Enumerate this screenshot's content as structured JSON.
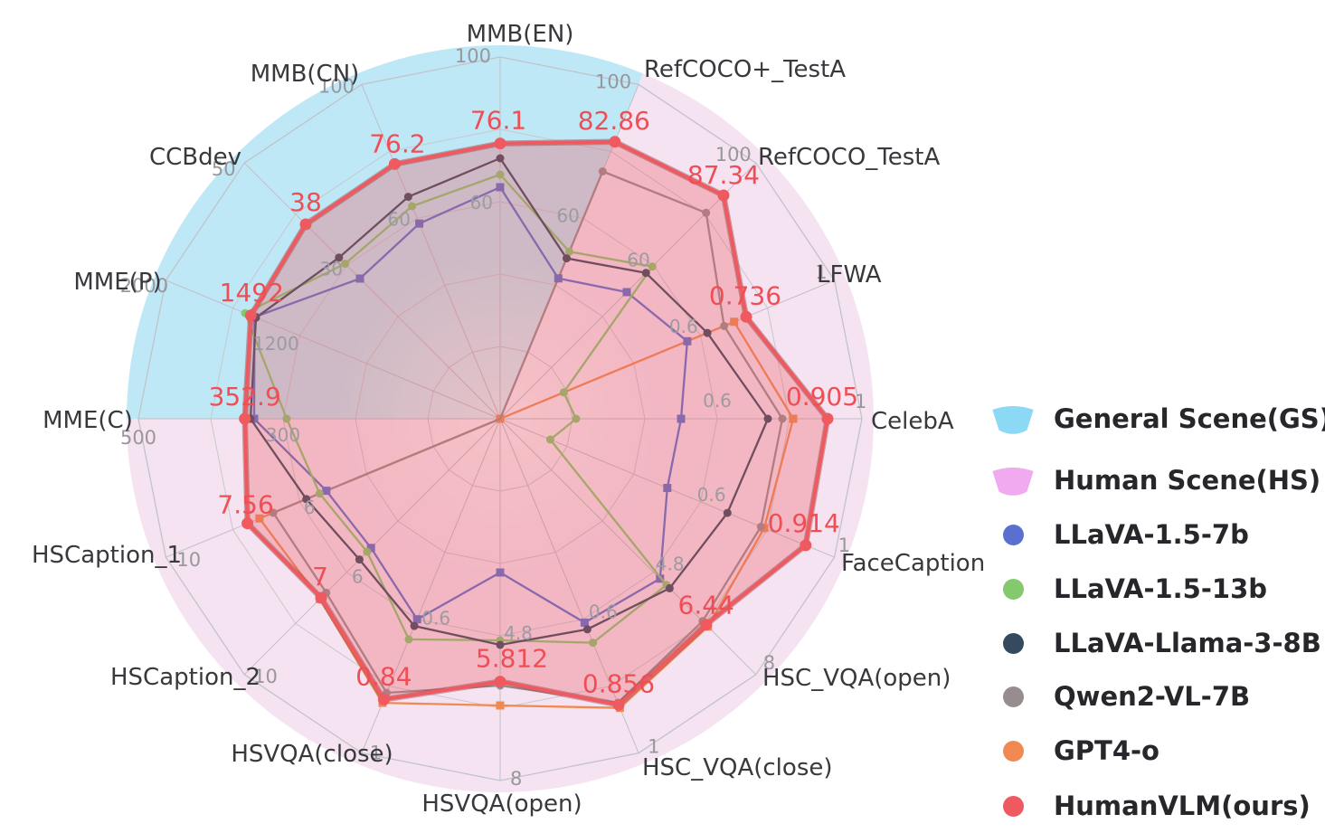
{
  "chart_data": {
    "type": "radar",
    "title": "",
    "axes_order": "clockwise from top",
    "axes": [
      {
        "label": "MMB(EN)",
        "max": 100,
        "outer_tick": "100",
        "inner_tick": "60",
        "humanvlm_value_label": "76.1"
      },
      {
        "label": "RefCOCO+_TestA",
        "max": 100,
        "outer_tick": "100",
        "inner_tick": "60",
        "humanvlm_value_label": "82.86"
      },
      {
        "label": "RefCOCO_TestA",
        "max": 100,
        "outer_tick": "100",
        "inner_tick": "60",
        "humanvlm_value_label": "87.34"
      },
      {
        "label": "LFWA",
        "max": 1,
        "outer_tick": "1",
        "inner_tick": "0.6",
        "humanvlm_value_label": "0.736"
      },
      {
        "label": "CelebA",
        "max": 1,
        "outer_tick": "1",
        "inner_tick": "0.6",
        "humanvlm_value_label": "0.905"
      },
      {
        "label": "FaceCaption",
        "max": 1,
        "outer_tick": "1",
        "inner_tick": "0.6",
        "humanvlm_value_label": "0.914"
      },
      {
        "label": "HSC_VQA(open)",
        "max": 8,
        "outer_tick": "8",
        "inner_tick": "4.8",
        "humanvlm_value_label": "6.44"
      },
      {
        "label": "HSC_VQA(close)",
        "max": 1,
        "outer_tick": "1",
        "inner_tick": "0.6",
        "humanvlm_value_label": "0.856"
      },
      {
        "label": "HSVQA(open)",
        "max": 8,
        "outer_tick": "8",
        "inner_tick": "4.8",
        "humanvlm_value_label": "5.812"
      },
      {
        "label": "HSVQA(close)",
        "max": 1,
        "outer_tick": "1",
        "inner_tick": "0.6",
        "humanvlm_value_label": "0.84"
      },
      {
        "label": "HSCaption_2",
        "max": 10,
        "outer_tick": "10",
        "inner_tick": "6",
        "humanvlm_value_label": "7"
      },
      {
        "label": "HSCaption_1",
        "max": 10,
        "outer_tick": "10",
        "inner_tick": "6",
        "humanvlm_value_label": "7.56"
      },
      {
        "label": "MME(C)",
        "max": 500,
        "outer_tick": "500",
        "inner_tick": "300",
        "humanvlm_value_label": "352.9"
      },
      {
        "label": "MME(P)",
        "max": 2000,
        "outer_tick": "2000",
        "inner_tick": "1200",
        "humanvlm_value_label": "1492"
      },
      {
        "label": "CCBdev",
        "max": 50,
        "outer_tick": "50",
        "inner_tick": "30",
        "humanvlm_value_label": "38"
      },
      {
        "label": "MMB(CN)",
        "max": 100,
        "outer_tick": "100",
        "inner_tick": "60",
        "humanvlm_value_label": "76.2"
      }
    ],
    "series": [
      {
        "name": "LLaVA-1.5-7b",
        "color": "#5a70d0",
        "marker": "square",
        "values": [
          64,
          42,
          49.5,
          0.56,
          0.5,
          0.5,
          5.0,
          0.61,
          3.4,
          0.6,
          5.05,
          5.2,
          340,
          1470,
          27.4,
          58.4
        ]
      },
      {
        "name": "LLaVA-1.5-13b",
        "color": "#85c96f",
        "marker": "circle",
        "values": [
          67.5,
          50,
          59.5,
          0.19,
          0.21,
          0.15,
          5.2,
          0.67,
          4.9,
          0.66,
          5.2,
          5.4,
          295,
          1526,
          30.3,
          63.6
        ]
      },
      {
        "name": "LLaVA-Llama-3-8B",
        "color": "#35495f",
        "marker": "circle",
        "values": [
          72,
          48,
          57,
          0.62,
          0.74,
          0.68,
          5.3,
          0.63,
          5.0,
          0.62,
          5.5,
          5.8,
          345,
          1461,
          31.5,
          66.4
        ]
      },
      {
        "name": "Qwen2-VL-7B",
        "color": "#978d8f",
        "marker": "circle",
        "values": [
          0,
          74,
          80.5,
          0.67,
          0.78,
          0.78,
          6.33,
          0.85,
          5.9,
          0.82,
          6.8,
          6.79,
          0,
          0,
          0,
          0
        ]
      },
      {
        "name": "GPT4-o",
        "color": "#f08a52",
        "marker": "square",
        "values": [
          0,
          0,
          0,
          0.7,
          0.81,
          0.79,
          6.5,
          0.865,
          6.34,
          0.85,
          7.05,
          7.2,
          0,
          0,
          0,
          0
        ]
      },
      {
        "name": "HumanVLM(ours)",
        "color": "#ee5a5f",
        "marker": "circle",
        "fill": "rgba(237,90,95,0.32)",
        "values": [
          76.1,
          82.86,
          87.34,
          0.736,
          0.905,
          0.914,
          6.44,
          0.856,
          5.812,
          0.84,
          7,
          7.56,
          352.9,
          1492,
          38,
          76.2
        ]
      }
    ],
    "bands": {
      "gs": {
        "label": "General Scene(GS)",
        "chart_color": "#bfe8f6",
        "legend_color": "#8bd9f4",
        "covers_axes": [
          "MMB(EN)",
          "MMB(CN)",
          "CCBdev",
          "MME(P)",
          "MME(C)"
        ]
      },
      "hs": {
        "label": "Human Scene(HS)",
        "chart_color": "#f5e3f2",
        "legend_color": "#f1a9ef",
        "covers_axes": [
          "RefCOCO+_TestA",
          "RefCOCO_TestA",
          "LFWA",
          "CelebA",
          "FaceCaption",
          "HSC_VQA(open)",
          "HSC_VQA(close)",
          "HSVQA(open)",
          "HSVQA(close)",
          "HSCaption_2",
          "HSCaption_1"
        ]
      }
    },
    "value_label_color": "#f04e55",
    "tick_label_color": "#97979d",
    "axis_name_color": "#38383d",
    "grid_line_color": "#c8c8cd",
    "legend_position": "right"
  },
  "legend": {
    "items": [
      {
        "label": "General Scene(GS)",
        "swatch": "wedge-blue"
      },
      {
        "label": "Human Scene(HS)",
        "swatch": "wedge-pink"
      },
      {
        "label": "LLaVA-1.5-7b",
        "swatch": "dot"
      },
      {
        "label": "LLaVA-1.5-13b",
        "swatch": "dot"
      },
      {
        "label": "LLaVA-Llama-3-8B",
        "swatch": "dot"
      },
      {
        "label": "Qwen2-VL-7B",
        "swatch": "dot"
      },
      {
        "label": "GPT4-o",
        "swatch": "dot"
      },
      {
        "label": "HumanVLM(ours)",
        "swatch": "dot"
      }
    ]
  }
}
